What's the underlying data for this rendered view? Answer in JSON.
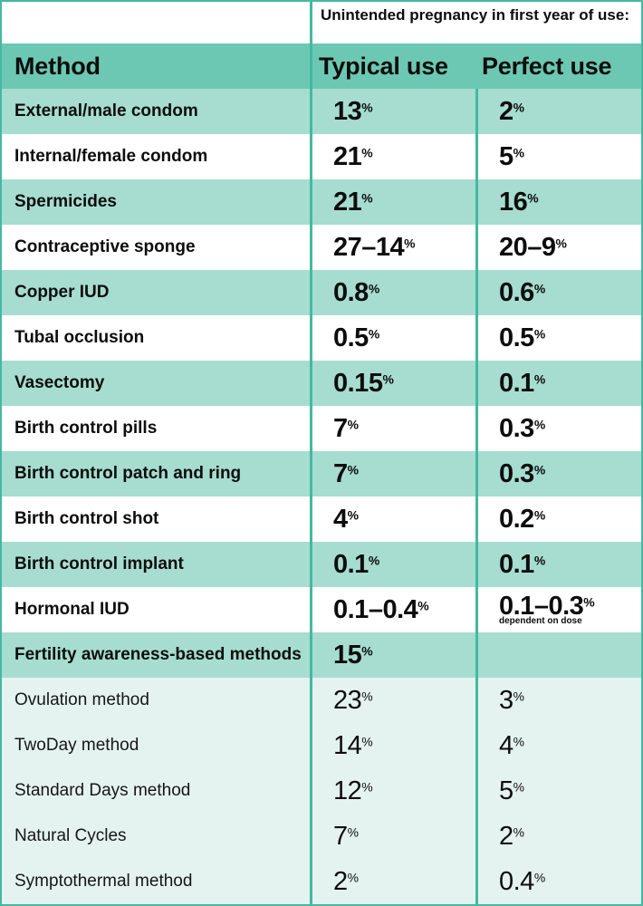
{
  "chart_data": {
    "type": "table",
    "title": "Unintended pregnancy in first year of use:",
    "columns": [
      "Method",
      "Typical use",
      "Perfect use"
    ],
    "unit": "%",
    "legend_position": "none",
    "rows": [
      {
        "method": "External/male condom",
        "typical": "13",
        "perfect": "2",
        "group": "main"
      },
      {
        "method": "Internal/female condom",
        "typical": "21",
        "perfect": "5",
        "group": "main"
      },
      {
        "method": "Spermicides",
        "typical": "21",
        "perfect": "16",
        "group": "main"
      },
      {
        "method": "Contraceptive sponge",
        "typical": "27–14",
        "perfect": "20–9",
        "group": "main"
      },
      {
        "method": "Copper IUD",
        "typical": "0.8",
        "perfect": "0.6",
        "group": "main"
      },
      {
        "method": "Tubal occlusion",
        "typical": "0.5",
        "perfect": "0.5",
        "group": "main"
      },
      {
        "method": "Vasectomy",
        "typical": "0.15",
        "perfect": "0.1",
        "group": "main"
      },
      {
        "method": "Birth control pills",
        "typical": "7",
        "perfect": "0.3",
        "group": "main"
      },
      {
        "method": "Birth control patch and ring",
        "typical": "7",
        "perfect": "0.3",
        "group": "main"
      },
      {
        "method": "Birth control shot",
        "typical": "4",
        "perfect": "0.2",
        "group": "main"
      },
      {
        "method": "Birth control implant",
        "typical": "0.1",
        "perfect": "0.1",
        "group": "main"
      },
      {
        "method": "Hormonal IUD",
        "typical": "0.1–0.4",
        "perfect": "0.1–0.3",
        "note": "dependent on dose",
        "group": "main"
      },
      {
        "method": "Fertility awareness-based methods",
        "typical": "15",
        "perfect": null,
        "group": "main"
      },
      {
        "method": "Ovulation method",
        "typical": "23",
        "perfect": "3",
        "group": "fertility-awareness-sub"
      },
      {
        "method": "TwoDay method",
        "typical": "14",
        "perfect": "4",
        "group": "fertility-awareness-sub"
      },
      {
        "method": "Standard Days method",
        "typical": "12",
        "perfect": "5",
        "group": "fertility-awareness-sub"
      },
      {
        "method": "Natural Cycles",
        "typical": "7",
        "perfect": "2",
        "group": "fertility-awareness-sub"
      },
      {
        "method": "Symptothermal method",
        "typical": "2",
        "perfect": "0.4",
        "group": "fertility-awareness-sub"
      }
    ]
  },
  "colors": {
    "header_teal": "#6cc8b3",
    "row_teal": "#a6ddd0",
    "sub_row_teal": "#e4f3ef",
    "grid_line": "#45b8a1",
    "text": "#0d0d0d"
  }
}
